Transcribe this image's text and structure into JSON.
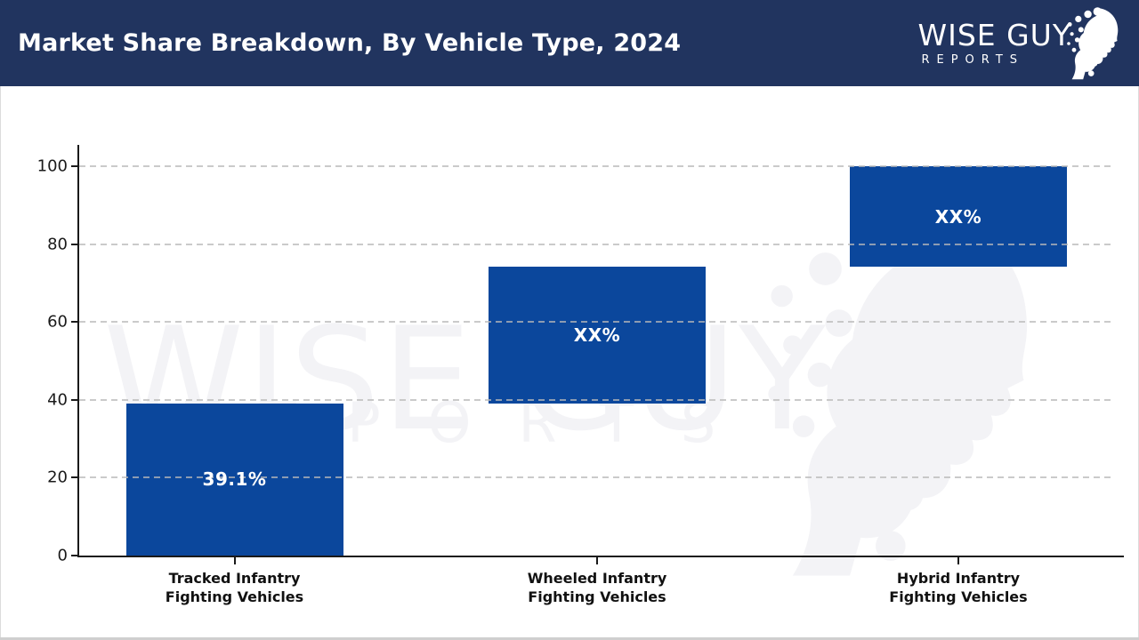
{
  "header": {
    "title": "Market Share Breakdown, By Vehicle Type, 2024",
    "logo": {
      "wordmark": "WISE GUY",
      "subtext": "REPORTS"
    }
  },
  "watermark": {
    "wordmark": "WISE GUY",
    "subtext": "REPORTS"
  },
  "chart_data": {
    "type": "bar",
    "subtype": "waterfall",
    "title": "Market Share Breakdown, By Vehicle Type, 2024",
    "categories": [
      {
        "line1": "Tracked Infantry",
        "line2": "Fighting Vehicles"
      },
      {
        "line1": "Wheeled Infantry",
        "line2": "Fighting Vehicles"
      },
      {
        "line1": "Hybrid Infantry",
        "line2": "Fighting Vehicles"
      }
    ],
    "segments": [
      {
        "start": 0,
        "end": 39.1,
        "label": "39.1%"
      },
      {
        "start": 39.1,
        "end": 74.2,
        "label": "XX%"
      },
      {
        "start": 74.2,
        "end": 100,
        "label": "XX%"
      }
    ],
    "yticks": [
      0,
      20,
      40,
      60,
      80,
      100
    ],
    "ylim": [
      0,
      100
    ],
    "grid": "dashed horizontal, drawn over bars",
    "legend": "none",
    "bar_color": "#0b479c",
    "bar_label_color": "#ffffff"
  },
  "colors": {
    "header_bg": "#21345f",
    "axis": "#1a1a1a",
    "gridline": "#bcbcbc",
    "watermark": "#f3f3f6",
    "page_bg": "#ffffff"
  }
}
